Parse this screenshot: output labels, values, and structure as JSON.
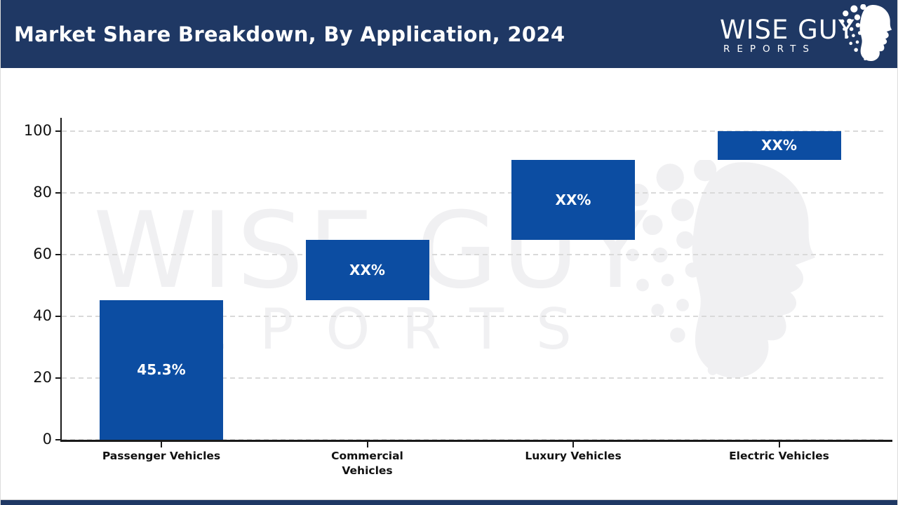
{
  "header": {
    "title": "Market Share Breakdown, By Application, 2024",
    "logo": {
      "name": "WISE GUY",
      "sub": "REPORTS"
    }
  },
  "watermark": {
    "line1": "WISE GUY",
    "line2": "REPORTS"
  },
  "colors": {
    "header_bg": "#1f3864",
    "footer_bg": "#1f3864",
    "bar": "#0c4da2",
    "grid": "#d9d9d9",
    "axis": "#1a1a1a",
    "watermark": "#f0f0f2",
    "title_text": "#ffffff",
    "bar_label_text": "#ffffff"
  },
  "chart_data": {
    "type": "bar",
    "variant": "waterfall",
    "title": "Market Share Breakdown, By Application, 2024",
    "xlabel": "",
    "ylabel": "",
    "ylim": [
      0,
      100
    ],
    "yticks": [
      0,
      20,
      40,
      60,
      80,
      100
    ],
    "grid": true,
    "legend": false,
    "categories": [
      "Passenger Vehicles",
      "Commercial\nVehicles",
      "Luxury Vehicles",
      "Electric Vehicles"
    ],
    "segments": [
      {
        "category": "Passenger Vehicles",
        "start": 0,
        "end": 45.3,
        "value": 45.3,
        "label": "45.3%"
      },
      {
        "category": "Commercial\nVehicles",
        "start": 45.3,
        "end": 64.8,
        "value": 19.5,
        "label": "XX%"
      },
      {
        "category": "Luxury Vehicles",
        "start": 64.8,
        "end": 90.7,
        "value": 25.9,
        "label": "XX%"
      },
      {
        "category": "Electric Vehicles",
        "start": 90.7,
        "end": 100,
        "value": 9.3,
        "label": "XX%"
      }
    ]
  }
}
